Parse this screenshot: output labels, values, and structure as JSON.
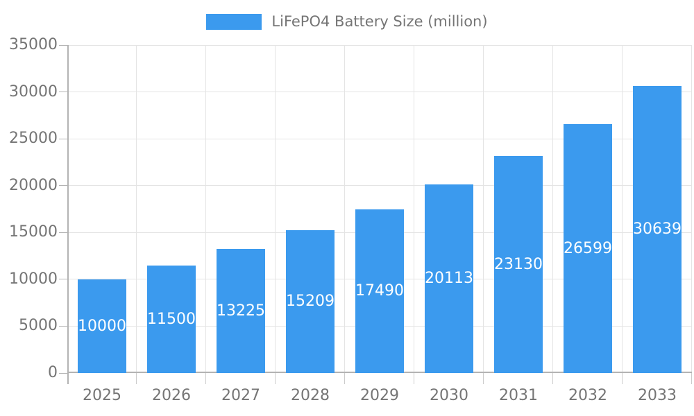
{
  "legend": {
    "label": "LiFePO4 Battery Size (million)"
  },
  "chart_data": {
    "type": "bar",
    "title": "LiFePO4 Battery Size (million)",
    "categories": [
      "2025",
      "2026",
      "2027",
      "2028",
      "2029",
      "2030",
      "2031",
      "2032",
      "2033"
    ],
    "series": [
      {
        "name": "LiFePO4 Battery Size (million)",
        "values": [
          10000,
          11500,
          13225,
          15209,
          17490,
          20113,
          23130,
          26599,
          30639
        ]
      }
    ],
    "value_labels": [
      "10000",
      "11500",
      "13225",
      "15209",
      "17490",
      "20113",
      "23130",
      "26599",
      "30639"
    ],
    "value_label_position": "inside-center",
    "xlabel": "",
    "ylabel": "",
    "ylim": [
      0,
      35000
    ],
    "ytick_step": 5000,
    "ytick_labels": [
      "0",
      "5000",
      "10000",
      "15000",
      "20000",
      "25000",
      "30000",
      "35000"
    ],
    "grid": true,
    "legend_position": "top-center",
    "colors": {
      "bar": "#3b9aee",
      "bar_value_label": "#ffffff",
      "axis_text": "#757575",
      "axis_line": "#b3b3b3",
      "gridline": "#e4e4e4",
      "tick": "#cccccc",
      "background": "#ffffff"
    }
  }
}
